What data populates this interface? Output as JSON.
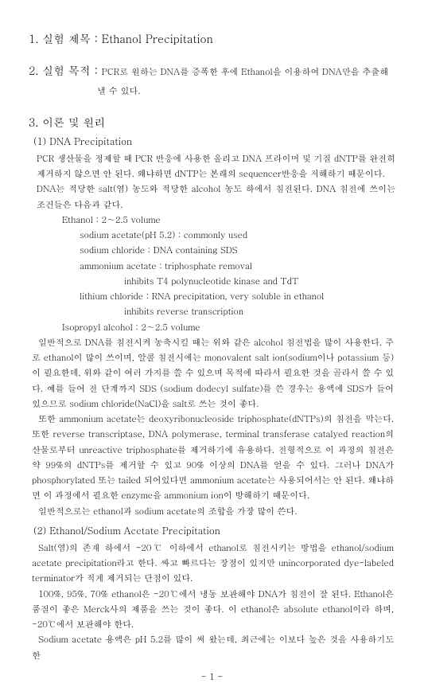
{
  "section1": {
    "num": "1.",
    "label": "실험 제목",
    "sep": " : ",
    "title": "Ethanol Precipitation"
  },
  "section2": {
    "num": "2.",
    "label": "실험 목적",
    "sep": " : ",
    "line1": "PCR로 원하는 DNA를 증폭한 후에 Ethanol을 이용하여 DNA만을 추출해",
    "line2": "낼 수 있다."
  },
  "section3": {
    "num": "3.",
    "title": "이론 및 원리"
  },
  "s3_1": {
    "heading": "(1) DNA Precipitation",
    "p1": "PCR 생산물을 정제할 때 PCR 반응에 사용한 올리고 DNA 프라이머 및 기질 dNTP를 완전히 제거하지 않으면 안 된다. 왜냐하면 dNTP는 본래의 sequencer반응을 저해하기 때문이다.",
    "p2": "DNA는 적당한 salt(염) 농도와 적당한 alcohol 농도 하에서 침전된다. DNA 침전에 쓰이는 조건들은 다음과 같다.",
    "l1": "Ethanol : 2∼2.5 volume",
    "l2": "sodium acetate(pH 5.2) : commonly used",
    "l3": "sodium chloride : DNA containing SDS",
    "l4": "ammonium acetate : triphosphate removal",
    "l5": "inhibits T4 polynucleotide kinase and TdT",
    "l6": "lithium chloride : RNA precipitation, very soluble in ethanol",
    "l7": "inhibits reverse transcription",
    "l8": "Isopropyl alcohol : 2∼2.5 volume",
    "p3": "일반적으로 DNA를 침전시켜 농축시킬 때는 위와 같은 alcohol 침전법을 많이 사용한다. 주로 ethanol이 많이 쓰이며, 알콜 침전시에는 monovalent salt ion(sodium이나 potassium 등)이 필요한데, 위와 같이 여러 가지를 쓸 수 있으며 목적에 따라서 필요한 것을 골라서 쓸 수 있다. 예를 들어 전 단계까지 SDS (sodium dodecyl sulfate)를 쓴 경우는 용액에 SDS가 들어 있으므로 sodium chloride(NaCl)을 salt로 쓰는 것이 좋다.",
    "p4": "또한 ammonium acetate는  deoxyribonucleoside triphosphate(dNTPs)의 침전을 막는다. 또한 reverse transcriptase, DNA polymerase, terminal transferase catalyed reaction의 산물로부터 unreactive triphosphate를 제거하기에 유용하다. 전형적으로 이 과정의 침전은 약 99%의 dNTPs를 제거할 수 있고 90% 이상의 DNA를 얻을 수 있다. 그러나 DNA가 phosphorylated 또는 tailed 되어있다면 ammonium acetate는 사용되어서는 안 된다. 왜냐하면 이 과정에서 필요한 enzyme을 ammonium ion이 방해하기 때문이다.",
    "p5": "일반적으로는 ethanol과 sodium acetate의 조합을 가장 많이 쓴다."
  },
  "s3_2": {
    "heading": "(2) Ethanol/Sodium Acetate Precipitation",
    "p1": "Salt(염)의 존재 하에서 -20℃ 이하에서 ethanol로 침전시키는 방법을 ethanol/sodium acetate precipitation라고 한다. 싸고 빠르다는 장점이 있지만 unincorporated dye-labeled terminator가 적게 제거되는 단점이 있다.",
    "p2": "100%, 95%, 70% ethanol은 -20℃에서 냉동 보관해야 DNA가 침전이 잘 된다. Ethanol은 품질이 좋은 Merck사의 제품을 쓰는 것이 좋다. 이 ethanol은 absolute ethanol이라 하며, -20℃에서 보관해야 한다.",
    "p3": "Sodium acetate 용액은 pH 5.2를 많이 써 왔는데, 최근에는 이보다 높은 것을 사용하기도 한"
  },
  "footer": "- 1 -"
}
